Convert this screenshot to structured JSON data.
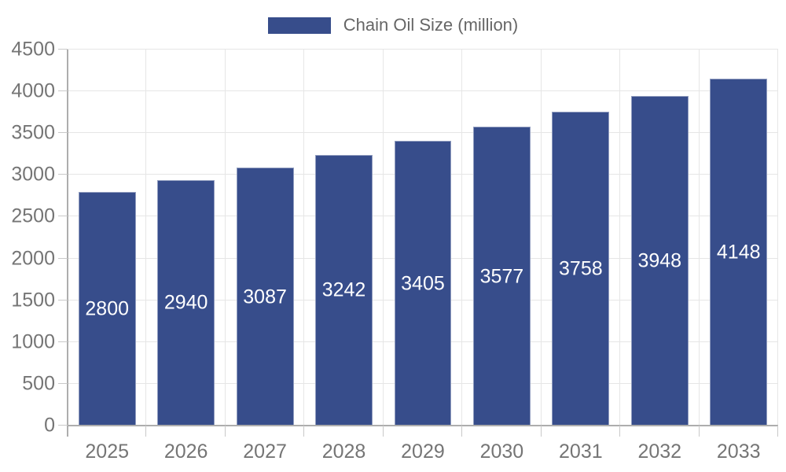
{
  "chart_data": {
    "type": "bar",
    "title": "",
    "legend": "Chain Oil Size (million)",
    "legend_position": "top-center",
    "categories": [
      "2025",
      "2026",
      "2027",
      "2028",
      "2029",
      "2030",
      "2031",
      "2032",
      "2033"
    ],
    "series": [
      {
        "name": "Chain Oil Size (million)",
        "values": [
          2800,
          2940,
          3087,
          3242,
          3405,
          3577,
          3758,
          3948,
          4148
        ]
      }
    ],
    "xlabel": "",
    "ylabel": "",
    "ylim": [
      0,
      4500
    ],
    "ytick_step": 500,
    "grid": true,
    "bar_labels_inside": true
  },
  "colors": {
    "background": "#ffffff",
    "bar": "#374d8b",
    "gridline": "#e6e6e6",
    "axis_line": "#adadad",
    "tick": "#c9c9c9",
    "axis_text": "#757575",
    "legend_text": "#666666",
    "value_label_text": "#ffffff"
  }
}
